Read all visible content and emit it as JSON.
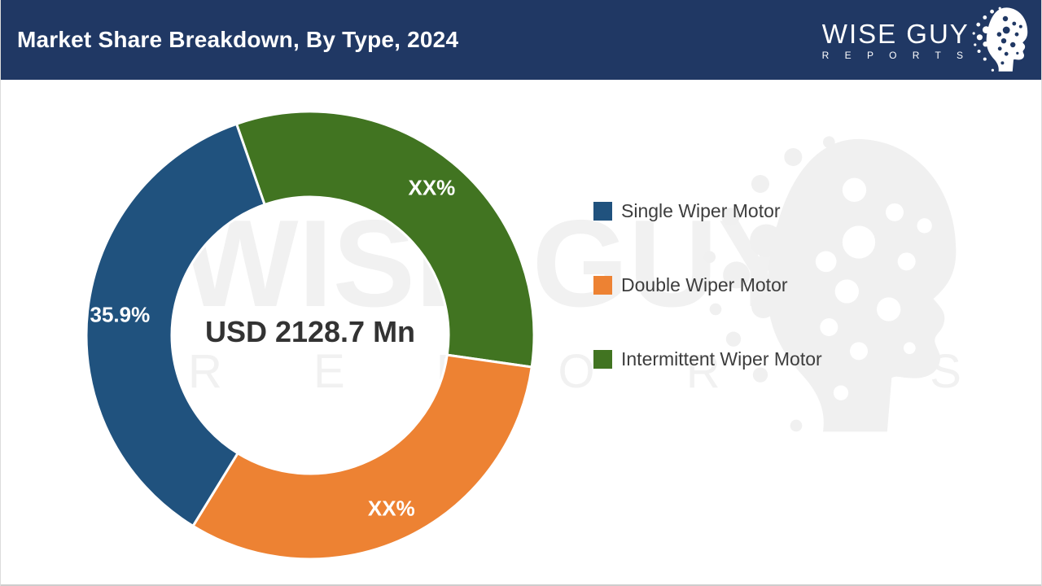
{
  "header": {
    "title": "Market Share Breakdown, By Type, 2024",
    "bg_color": "#203864",
    "logo": {
      "brand": "WISE GUY",
      "sub": "R E P O R T S"
    }
  },
  "watermark": {
    "line1": "WISE GUY",
    "line2": "R E P O R T S"
  },
  "chart_data": {
    "type": "pie",
    "subtype": "donut",
    "title": "Market Share Breakdown, By Type, 2024",
    "center_label": "USD 2128.7 Mn",
    "unit": "percent",
    "start_angle_deg": -19.2,
    "direction": "clockwise",
    "legend_position": "right",
    "segments": [
      {
        "name": "Intermittent Wiper Motor",
        "value": 32.6,
        "label": "XX%",
        "color": "#417421"
      },
      {
        "name": "Double Wiper Motor",
        "value": 31.5,
        "label": "XX%",
        "color": "#ED8233"
      },
      {
        "name": "Single Wiper Motor",
        "value": 35.9,
        "label": "35.9%",
        "color": "#20527E"
      }
    ],
    "legend": [
      {
        "label": "Single Wiper Motor",
        "color": "#20527E"
      },
      {
        "label": "Double Wiper Motor",
        "color": "#ED8233"
      },
      {
        "label": "Intermittent Wiper Motor",
        "color": "#417421"
      }
    ]
  }
}
